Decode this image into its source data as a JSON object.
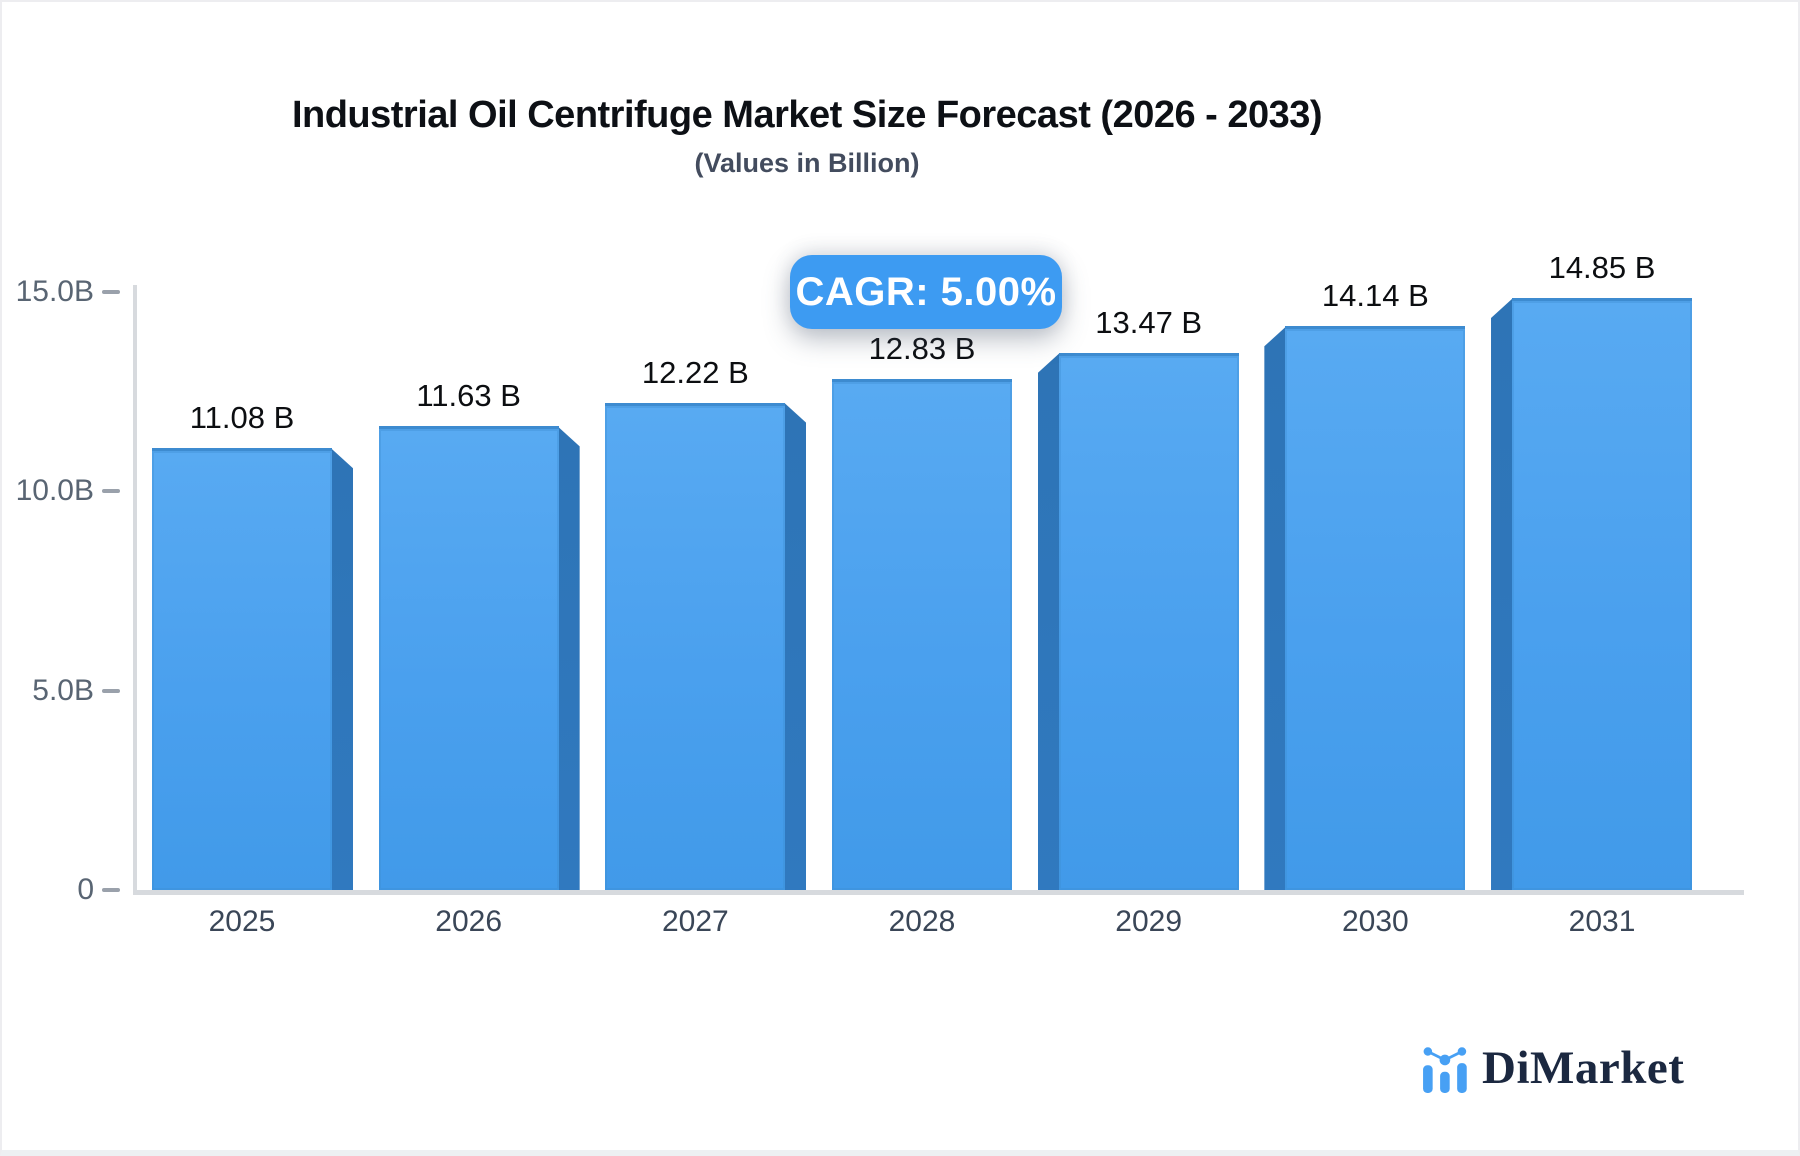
{
  "title": "Industrial Oil Centrifuge Market Size Forecast (2026 - 2033)",
  "subtitle": "(Values in Billion)",
  "badge": {
    "label": "CAGR: 5.00%"
  },
  "chart_data": {
    "type": "bar",
    "categories": [
      "2025",
      "2026",
      "2027",
      "2028",
      "2029",
      "2030",
      "2031"
    ],
    "values": [
      11.08,
      11.63,
      12.22,
      12.83,
      13.47,
      14.14,
      14.85
    ],
    "bar_labels": [
      "11.08 B",
      "11.63 B",
      "12.22 B",
      "12.83 B",
      "13.47 B",
      "14.14 B",
      "14.85 B"
    ],
    "title": "Industrial Oil Centrifuge Market Size Forecast (2026 - 2033)",
    "xlabel": "",
    "ylabel": "",
    "ylim": [
      0,
      15
    ],
    "yticks": [
      {
        "value": 15,
        "label": "15.0B"
      },
      {
        "value": 10,
        "label": "10.0B"
      },
      {
        "value": 5,
        "label": "5.0B"
      },
      {
        "value": 0,
        "label": "0"
      }
    ],
    "grid": "off",
    "legend": "none",
    "style": "3d-extruded-bars, perspective toward center (left bars show right side, right bars show left side)"
  },
  "colors": {
    "bar_face_top": "#58aaf2",
    "bar_face_mid": "#4aa0ee",
    "bar_face_bottom": "#419ae9",
    "bar_side": "#2e74b6",
    "bar_border": "#3d8bd0",
    "badge_bg": "#3d9bf2",
    "axis": "#d7dade",
    "tick_dash": "#9aa1ab",
    "y_label": "#596573",
    "x_label": "#3a4657",
    "value_label": "#0c0e11",
    "logo_blue": "#47a0f4",
    "logo_text": "#1b2840"
  },
  "logo": {
    "text": "DiMarket"
  }
}
